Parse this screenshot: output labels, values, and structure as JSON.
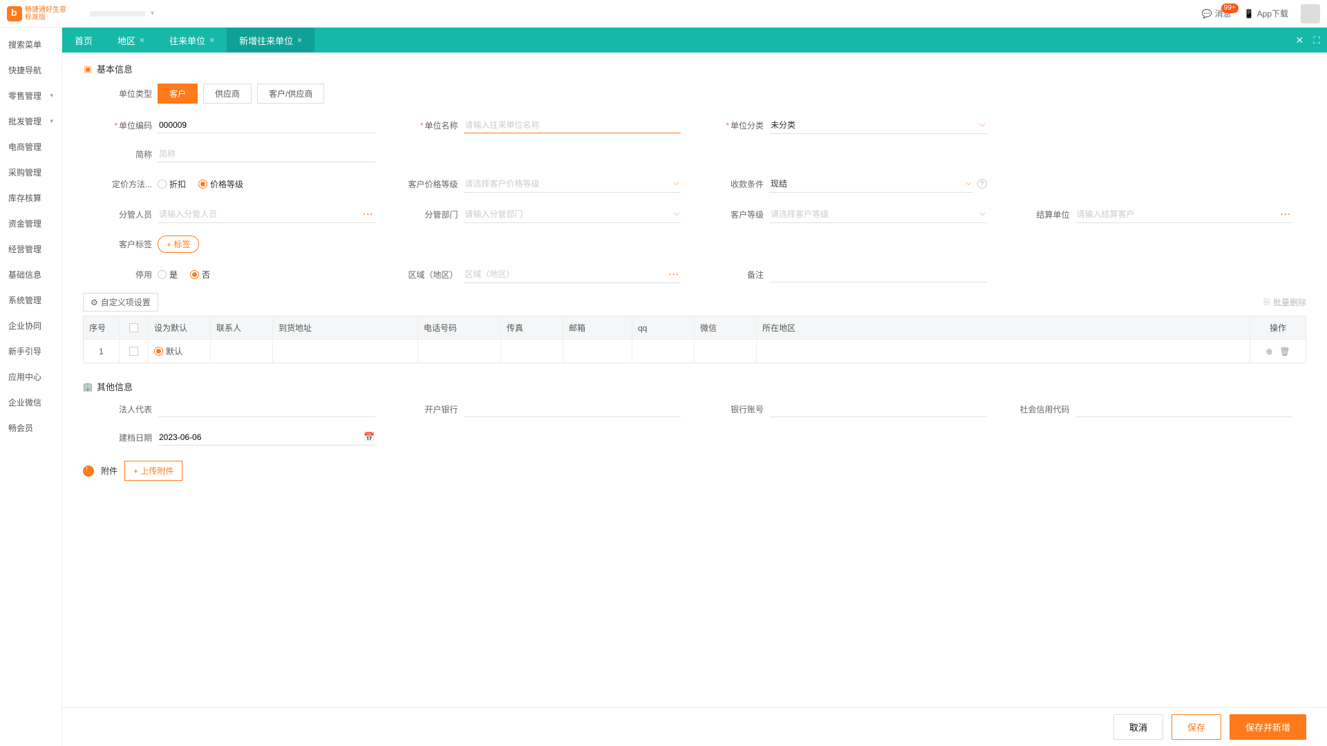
{
  "brand": {
    "name": "畅捷通好生意",
    "edition": "标准版"
  },
  "header": {
    "messages_label": "消息",
    "messages_badge": "99+",
    "download_label": "App下载"
  },
  "sidebar": {
    "items": [
      {
        "label": "搜索菜单",
        "expandable": false
      },
      {
        "label": "快捷导航",
        "expandable": false
      },
      {
        "label": "零售管理",
        "expandable": true
      },
      {
        "label": "批发管理",
        "expandable": true
      },
      {
        "label": "电商管理",
        "expandable": false
      },
      {
        "label": "采购管理",
        "expandable": false
      },
      {
        "label": "库存核算",
        "expandable": false
      },
      {
        "label": "资金管理",
        "expandable": false
      },
      {
        "label": "经营管理",
        "expandable": false
      },
      {
        "label": "基础信息",
        "expandable": false
      },
      {
        "label": "系统管理",
        "expandable": false
      },
      {
        "label": "企业协同",
        "expandable": false
      },
      {
        "label": "新手引导",
        "expandable": false
      },
      {
        "label": "应用中心",
        "expandable": false
      },
      {
        "label": "企业微信",
        "expandable": false
      },
      {
        "label": "畅会员",
        "expandable": false
      }
    ]
  },
  "tabs": [
    {
      "label": "首页",
      "closable": false,
      "active": false
    },
    {
      "label": "地区",
      "closable": true,
      "active": false
    },
    {
      "label": "往来单位",
      "closable": true,
      "active": false
    },
    {
      "label": "新增往来单位",
      "closable": true,
      "active": true
    }
  ],
  "sections": {
    "basic": "基本信息",
    "other": "其他信息",
    "attachment": "附件"
  },
  "form": {
    "unit_type": {
      "label": "单位类型",
      "options": [
        "客户",
        "供应商",
        "客户/供应商"
      ],
      "active": 0
    },
    "unit_code": {
      "label": "单位编码",
      "value": "000009",
      "required": true
    },
    "unit_name": {
      "label": "单位名称",
      "placeholder": "请输入往来单位名称",
      "required": true
    },
    "unit_category": {
      "label": "单位分类",
      "value": "未分类",
      "required": true
    },
    "short_name": {
      "label": "简称",
      "placeholder": "简称"
    },
    "pricing_method": {
      "label": "定价方法...",
      "options": [
        "折扣",
        "价格等级"
      ],
      "selected": 1
    },
    "customer_price_level": {
      "label": "客户价格等级",
      "placeholder": "请选择客户价格等级"
    },
    "payment_terms": {
      "label": "收款条件",
      "value": "现结"
    },
    "manager": {
      "label": "分管人员",
      "placeholder": "请输入分管人员"
    },
    "department": {
      "label": "分管部门",
      "placeholder": "请输入分管部门"
    },
    "customer_level": {
      "label": "客户等级",
      "placeholder": "请选择客户等级"
    },
    "settlement_unit": {
      "label": "结算单位",
      "placeholder": "请输入结算客户"
    },
    "customer_tags": {
      "label": "客户标签",
      "add_btn": "+ 标签"
    },
    "disabled": {
      "label": "停用",
      "options": [
        "是",
        "否"
      ],
      "selected": 1
    },
    "region": {
      "label": "区域（地区）",
      "placeholder": "区域（地区）"
    },
    "remark": {
      "label": "备注"
    },
    "custom_settings": "自定义项设置",
    "batch_delete": "批量删除",
    "legal_rep": {
      "label": "法人代表"
    },
    "bank_name": {
      "label": "开户银行"
    },
    "bank_account": {
      "label": "银行账号"
    },
    "credit_code": {
      "label": "社会信用代码"
    },
    "created_date": {
      "label": "建档日期",
      "value": "2023-06-06"
    },
    "upload_btn": "+ 上传附件"
  },
  "table": {
    "headers": [
      "序号",
      "",
      "设为默认",
      "联系人",
      "到货地址",
      "电话号码",
      "传真",
      "邮箱",
      "qq",
      "微信",
      "所在地区",
      "操作"
    ],
    "rows": [
      {
        "seq": "1",
        "default_label": "默认",
        "default_checked": true
      }
    ]
  },
  "footer": {
    "cancel": "取消",
    "save": "保存",
    "save_and_new": "保存并新增"
  },
  "colors": {
    "primary": "#ff7a1a",
    "teal": "#16b8a8",
    "teal_dark": "#0fa195"
  }
}
